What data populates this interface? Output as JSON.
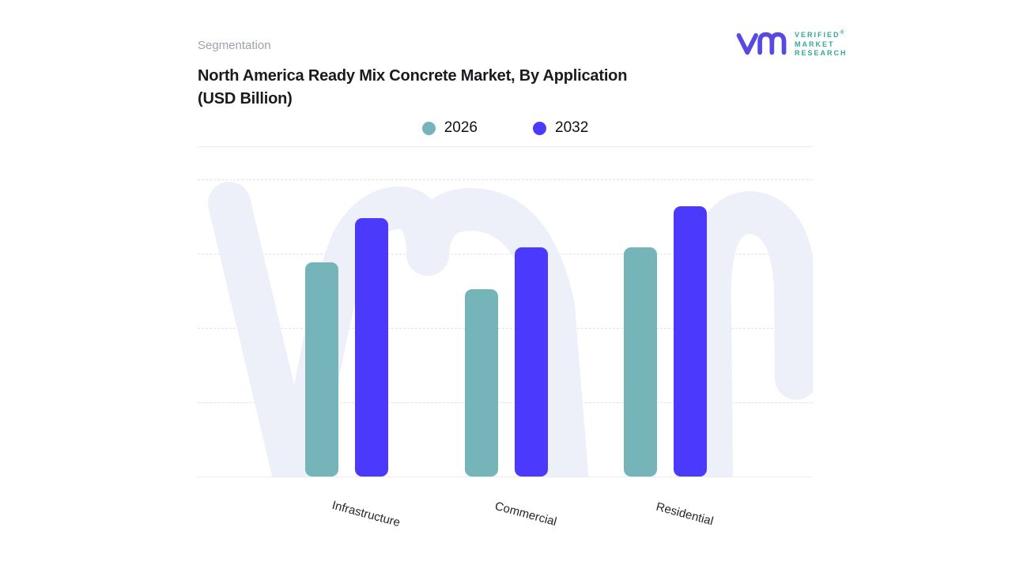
{
  "header": {
    "eyebrow": "Segmentation",
    "title_line1": "North America Ready Mix Concrete Market, By Application",
    "title_line2": "(USD Billion)"
  },
  "logo": {
    "line1": "VERIFIED",
    "registered": "®",
    "line2": "MARKET",
    "line3": "RESEARCH"
  },
  "colors": {
    "series_2026": "#75b5ba",
    "series_2032": "#4c3afc",
    "watermark": "#eef0f9",
    "gridline": "#e2e3ea",
    "axis": "#ececf1",
    "title_text": "#1b1b1f",
    "eyebrow_text": "#9da1a9",
    "category_text": "#26262a",
    "logo_purple": "#564ae3",
    "logo_teal": "#36a79e"
  },
  "chart_data": {
    "type": "bar",
    "title": "North America Ready Mix Concrete Market, By Application (USD Billion)",
    "categories": [
      "Infrastructure",
      "Commercial",
      "Residential"
    ],
    "series": [
      {
        "name": "2026",
        "color": "#75b5ba",
        "values": [
          72,
          63,
          77
        ]
      },
      {
        "name": "2032",
        "color": "#4c3afc",
        "values": [
          87,
          77,
          91
        ]
      }
    ],
    "xlabel": "",
    "ylabel": "",
    "ylim": [
      0,
      100
    ],
    "value_scale": "relative bar height as % of plot height (no numeric y-axis labels shown)",
    "grid": "4 horizontal dashed gridlines, solid baseline",
    "legend_position": "top-center",
    "category_label_rotation_deg": 15
  }
}
